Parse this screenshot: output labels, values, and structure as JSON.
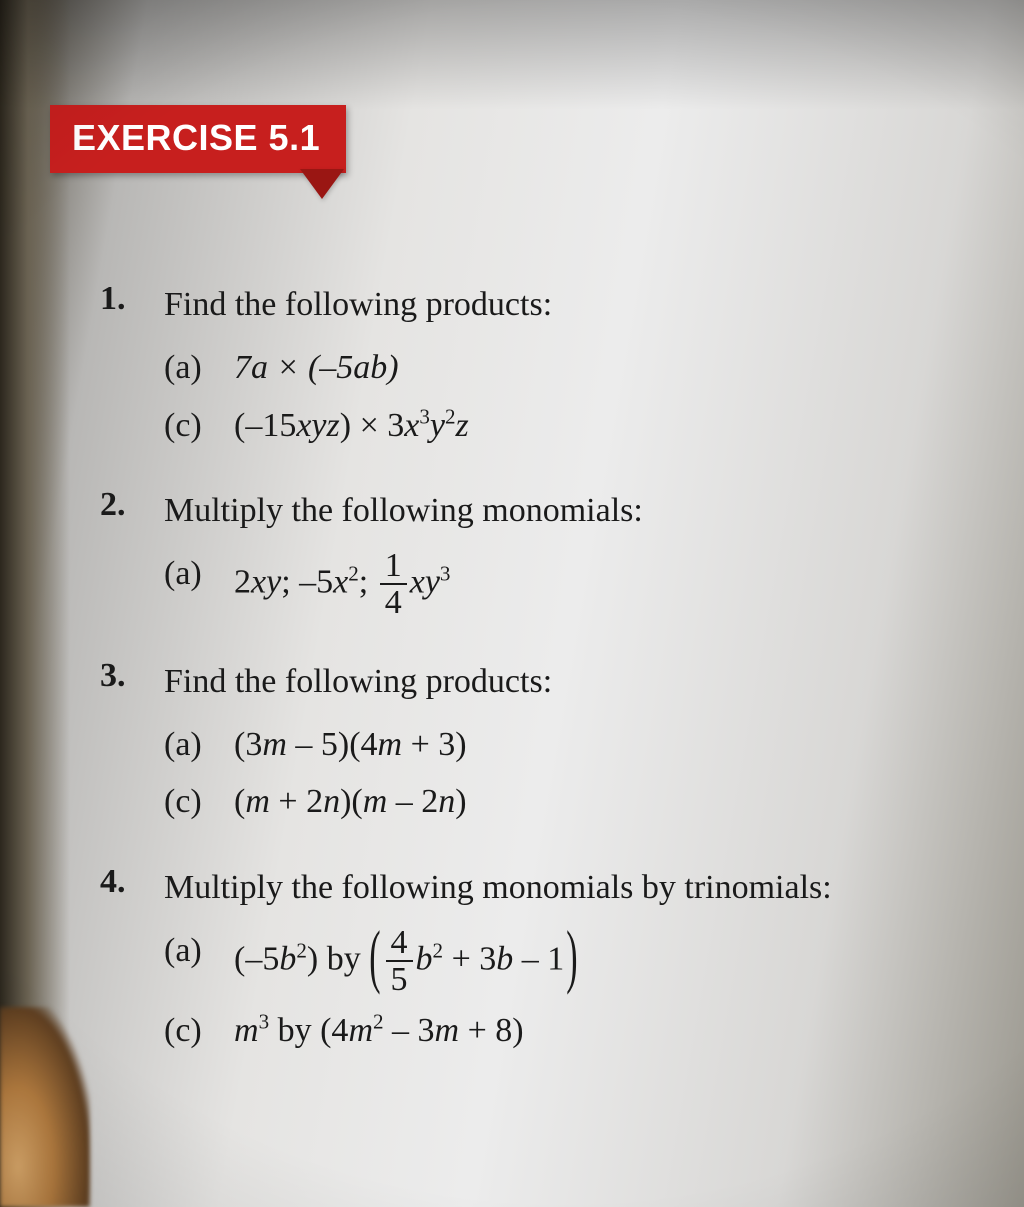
{
  "header": {
    "label": "EXERCISE 5.1",
    "bg": "#c71f1e",
    "fg": "#ffffff",
    "fontsize": 36
  },
  "text_color": "#1a1a1a",
  "body_fontsize": 34,
  "questions": {
    "q1": {
      "num": "1.",
      "text": "Find the following products:",
      "a_label": "(a)",
      "a_val": "7a × (–5ab)",
      "c_label": "(c)",
      "c_val": "(–15xyz) × 3x³y²z"
    },
    "q2": {
      "num": "2.",
      "text": "Multiply the following monomials:",
      "a_label": "(a)",
      "a_pre": "2xy; –5x²; ",
      "a_frac_n": "1",
      "a_frac_d": "4",
      "a_post": " xy³"
    },
    "q3": {
      "num": "3.",
      "text": "Find the following products:",
      "a_label": "(a)",
      "a_val": "(3m – 5)(4m + 3)",
      "c_label": "(c)",
      "c_val": "(m + 2n)(m – 2n)"
    },
    "q4": {
      "num": "4.",
      "text": "Multiply the following monomials by trinomials:",
      "a_label": "(a)",
      "a_pre": "(–5b²) by ",
      "a_frac_n": "4",
      "a_frac_d": "5",
      "a_mid": "b² + 3b – 1",
      "c_label": "(c)",
      "c_val": "m³ by (4m² – 3m + 8)"
    }
  }
}
